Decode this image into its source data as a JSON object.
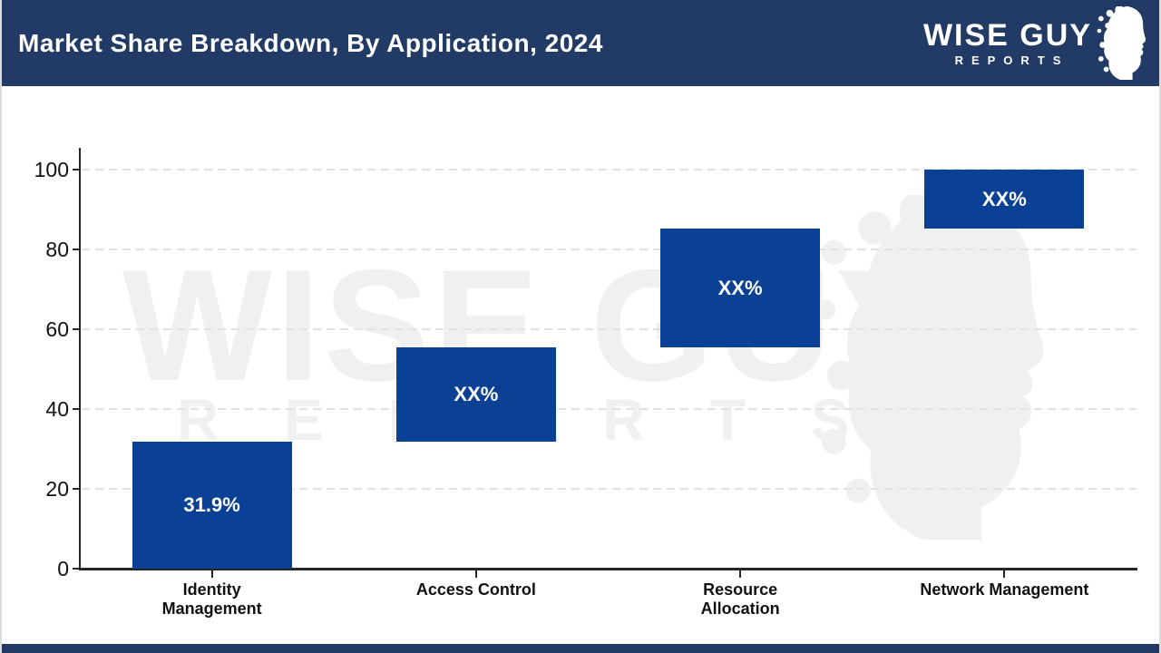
{
  "header": {
    "title": "Market Share Breakdown, By Application, 2024",
    "logo": {
      "brand_line1": "WISE GUY",
      "brand_line2": "REPORTS"
    }
  },
  "watermark": {
    "line1": "WISE GUY",
    "line2": "REPORTS"
  },
  "colors": {
    "header_navy": "#213A66",
    "bar_blue": "#0A4194",
    "watermark_gray": "#F0F0F0",
    "gridline_gray": "#E2E2E2",
    "axis_black": "#262626",
    "value_label_white": "#FFFFFF"
  },
  "chart_data": {
    "type": "bar",
    "subtype": "waterfall",
    "title": "Market Share Breakdown, By Application, 2024",
    "xlabel": "",
    "ylabel": "",
    "categories": [
      [
        "Identity",
        "Management"
      ],
      [
        "Access Control"
      ],
      [
        "Resource",
        "Allocation"
      ],
      [
        "Network Management"
      ]
    ],
    "bars": [
      {
        "category": "Identity Management",
        "label": "31.9%",
        "start": 0,
        "end": 31.9
      },
      {
        "category": "Access Control",
        "label": "XX%",
        "start": 31.9,
        "end": 55.4
      },
      {
        "category": "Resource Allocation",
        "label": "XX%",
        "start": 55.4,
        "end": 85.2
      },
      {
        "category": "Network Management",
        "label": "XX%",
        "start": 85.2,
        "end": 100
      }
    ],
    "yticks": [
      0,
      20,
      40,
      60,
      80,
      100
    ],
    "ylim": [
      0,
      105.5
    ],
    "grid": "horizontal-dashed",
    "legend": "none",
    "bar_color": "#0A4194",
    "value_label_color": "#FFFFFF"
  }
}
